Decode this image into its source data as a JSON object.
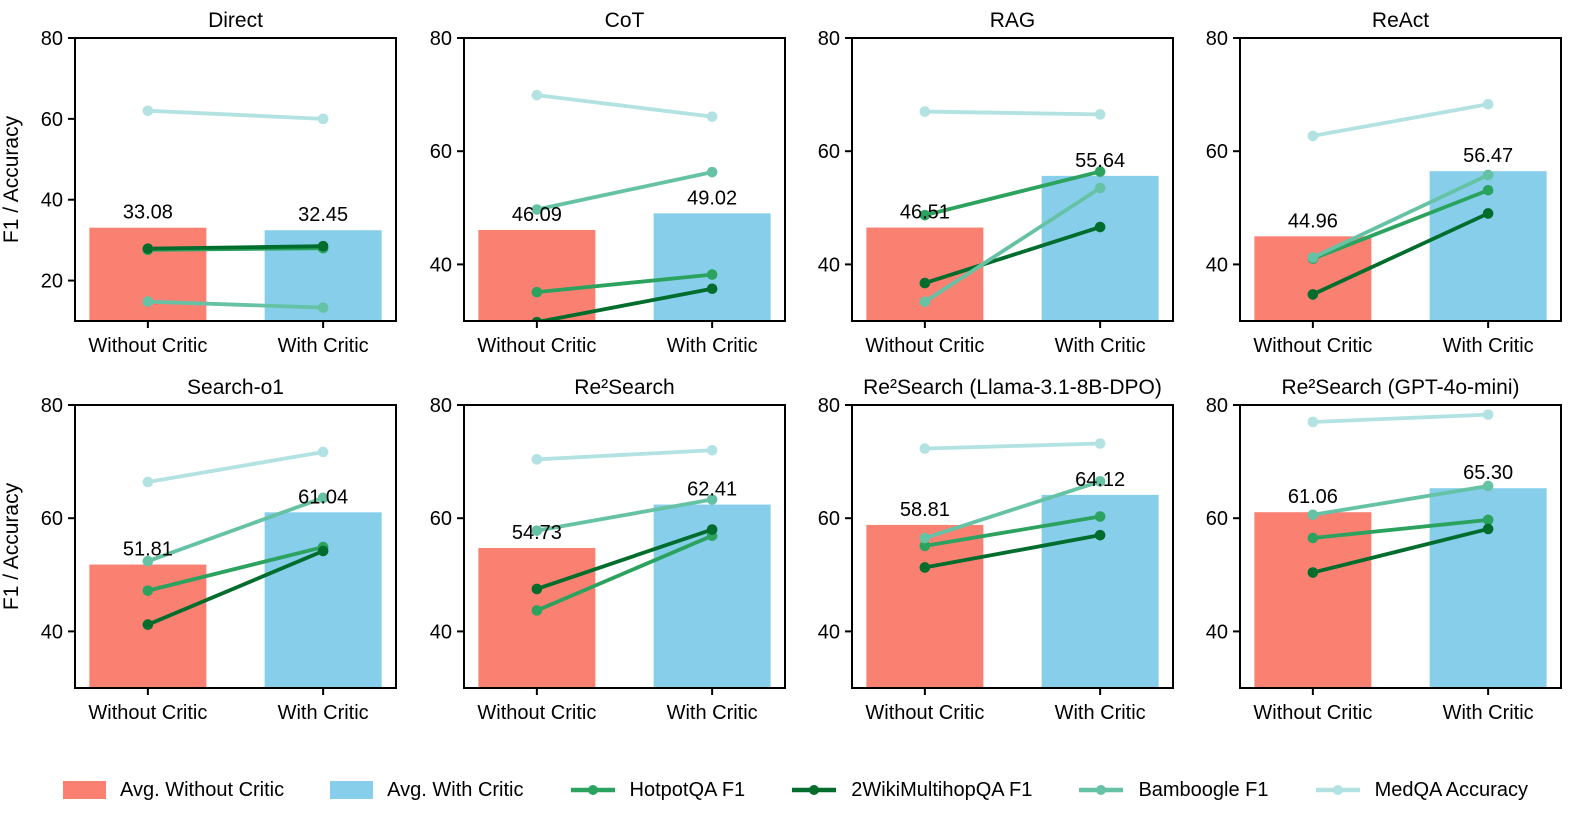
{
  "figure": {
    "ylabel": "F1 / Accuracy",
    "categories": [
      "Without Critic",
      "With Critic"
    ],
    "grid": false,
    "legend_position": "bottom"
  },
  "legend": {
    "items": [
      {
        "label": "Avg. Without Critic",
        "swatch": "patch",
        "color": "#FA8072"
      },
      {
        "label": "Avg. With Critic",
        "swatch": "patch",
        "color": "#87CEEB"
      },
      {
        "label": "HotpotQA F1",
        "swatch": "line",
        "color": "#2CA25F"
      },
      {
        "label": "2WikiMultihopQA F1",
        "swatch": "line",
        "color": "#006D2C"
      },
      {
        "label": "Bamboogle F1",
        "swatch": "line",
        "color": "#66C2A4"
      },
      {
        "label": "MedQA Accuracy",
        "swatch": "line",
        "color": "#B2E2E2"
      }
    ]
  },
  "chart_data": [
    {
      "type": "bar+line",
      "title": "Direct",
      "categories": [
        "Without Critic",
        "With Critic"
      ],
      "ylim": [
        10,
        80
      ],
      "yticks": [
        20,
        40,
        60,
        80
      ],
      "show_ylabel": true,
      "bars": {
        "name": "Average",
        "values": [
          33.08,
          32.45
        ],
        "labels": [
          "33.08",
          "32.45"
        ]
      },
      "series": [
        {
          "name": "HotpotQA F1",
          "values": [
            27.6,
            28.0
          ]
        },
        {
          "name": "2WikiMultihopQA F1",
          "values": [
            27.9,
            28.5
          ]
        },
        {
          "name": "Bamboogle F1",
          "values": [
            14.8,
            13.3
          ]
        },
        {
          "name": "MedQA Accuracy",
          "values": [
            62.0,
            60.0
          ]
        }
      ]
    },
    {
      "type": "bar+line",
      "title": "CoT",
      "categories": [
        "Without Critic",
        "With Critic"
      ],
      "ylim": [
        30,
        80
      ],
      "yticks": [
        40,
        60,
        80
      ],
      "show_ylabel": false,
      "bars": {
        "name": "Average",
        "values": [
          46.09,
          49.02
        ],
        "labels": [
          "46.09",
          "49.02"
        ]
      },
      "series": [
        {
          "name": "HotpotQA F1",
          "values": [
            35.1,
            38.2
          ]
        },
        {
          "name": "2WikiMultihopQA F1",
          "values": [
            29.8,
            35.7
          ]
        },
        {
          "name": "Bamboogle F1",
          "values": [
            49.7,
            56.3
          ]
        },
        {
          "name": "MedQA Accuracy",
          "values": [
            69.9,
            66.1
          ]
        }
      ]
    },
    {
      "type": "bar+line",
      "title": "RAG",
      "categories": [
        "Without Critic",
        "With Critic"
      ],
      "ylim": [
        30,
        80
      ],
      "yticks": [
        40,
        60,
        80
      ],
      "show_ylabel": false,
      "bars": {
        "name": "Average",
        "values": [
          46.51,
          55.64
        ],
        "labels": [
          "46.51",
          "55.64"
        ]
      },
      "series": [
        {
          "name": "HotpotQA F1",
          "values": [
            48.7,
            56.4
          ]
        },
        {
          "name": "2WikiMultihopQA F1",
          "values": [
            36.7,
            46.6
          ]
        },
        {
          "name": "Bamboogle F1",
          "values": [
            33.4,
            53.5
          ]
        },
        {
          "name": "MedQA Accuracy",
          "values": [
            67.0,
            66.5
          ]
        }
      ]
    },
    {
      "type": "bar+line",
      "title": "ReAct",
      "categories": [
        "Without Critic",
        "With Critic"
      ],
      "ylim": [
        30,
        80
      ],
      "yticks": [
        40,
        60,
        80
      ],
      "show_ylabel": false,
      "bars": {
        "name": "Average",
        "values": [
          44.96,
          56.47
        ],
        "labels": [
          "44.96",
          "56.47"
        ]
      },
      "series": [
        {
          "name": "HotpotQA F1",
          "values": [
            41.0,
            53.1
          ]
        },
        {
          "name": "2WikiMultihopQA F1",
          "values": [
            34.7,
            49.0
          ]
        },
        {
          "name": "Bamboogle F1",
          "values": [
            41.2,
            55.8
          ]
        },
        {
          "name": "MedQA Accuracy",
          "values": [
            62.7,
            68.3
          ]
        }
      ]
    },
    {
      "type": "bar+line",
      "title": "Search-o1",
      "categories": [
        "Without Critic",
        "With Critic"
      ],
      "ylim": [
        30,
        80
      ],
      "yticks": [
        40,
        60,
        80
      ],
      "show_ylabel": true,
      "bars": {
        "name": "Average",
        "values": [
          51.81,
          61.04
        ],
        "labels": [
          "51.81",
          "61.04"
        ]
      },
      "series": [
        {
          "name": "HotpotQA F1",
          "values": [
            47.2,
            54.9
          ]
        },
        {
          "name": "2WikiMultihopQA F1",
          "values": [
            41.2,
            54.2
          ]
        },
        {
          "name": "Bamboogle F1",
          "values": [
            52.4,
            63.6
          ]
        },
        {
          "name": "MedQA Accuracy",
          "values": [
            66.4,
            71.7
          ]
        }
      ]
    },
    {
      "type": "bar+line",
      "title": "Re²Search",
      "categories": [
        "Without Critic",
        "With Critic"
      ],
      "ylim": [
        30,
        80
      ],
      "yticks": [
        40,
        60,
        80
      ],
      "show_ylabel": false,
      "bars": {
        "name": "Average",
        "values": [
          54.73,
          62.41
        ],
        "labels": [
          "54.73",
          "62.41"
        ]
      },
      "series": [
        {
          "name": "HotpotQA F1",
          "values": [
            43.7,
            56.9
          ]
        },
        {
          "name": "2WikiMultihopQA F1",
          "values": [
            47.5,
            58.0
          ]
        },
        {
          "name": "Bamboogle F1",
          "values": [
            57.8,
            63.3
          ]
        },
        {
          "name": "MedQA Accuracy",
          "values": [
            70.4,
            72.0
          ]
        }
      ]
    },
    {
      "type": "bar+line",
      "title": "Re²Search (Llama-3.1-8B-DPO)",
      "categories": [
        "Without Critic",
        "With Critic"
      ],
      "ylim": [
        30,
        80
      ],
      "yticks": [
        40,
        60,
        80
      ],
      "show_ylabel": false,
      "bars": {
        "name": "Average",
        "values": [
          58.81,
          64.12
        ],
        "labels": [
          "58.81",
          "64.12"
        ]
      },
      "series": [
        {
          "name": "HotpotQA F1",
          "values": [
            55.1,
            60.3
          ]
        },
        {
          "name": "2WikiMultihopQA F1",
          "values": [
            51.3,
            57.0
          ]
        },
        {
          "name": "Bamboogle F1",
          "values": [
            56.5,
            66.5
          ]
        },
        {
          "name": "MedQA Accuracy",
          "values": [
            72.3,
            73.2
          ]
        }
      ]
    },
    {
      "type": "bar+line",
      "title": "Re²Search (GPT-4o-mini)",
      "categories": [
        "Without Critic",
        "With Critic"
      ],
      "ylim": [
        30,
        80
      ],
      "yticks": [
        40,
        60,
        80
      ],
      "show_ylabel": false,
      "bars": {
        "name": "Average",
        "values": [
          61.06,
          65.3
        ],
        "labels": [
          "61.06",
          "65.30"
        ]
      },
      "series": [
        {
          "name": "HotpotQA F1",
          "values": [
            56.5,
            59.7
          ]
        },
        {
          "name": "2WikiMultihopQA F1",
          "values": [
            50.4,
            58.1
          ]
        },
        {
          "name": "Bamboogle F1",
          "values": [
            60.6,
            65.7
          ]
        },
        {
          "name": "MedQA Accuracy",
          "values": [
            77.0,
            78.3
          ]
        }
      ]
    }
  ]
}
